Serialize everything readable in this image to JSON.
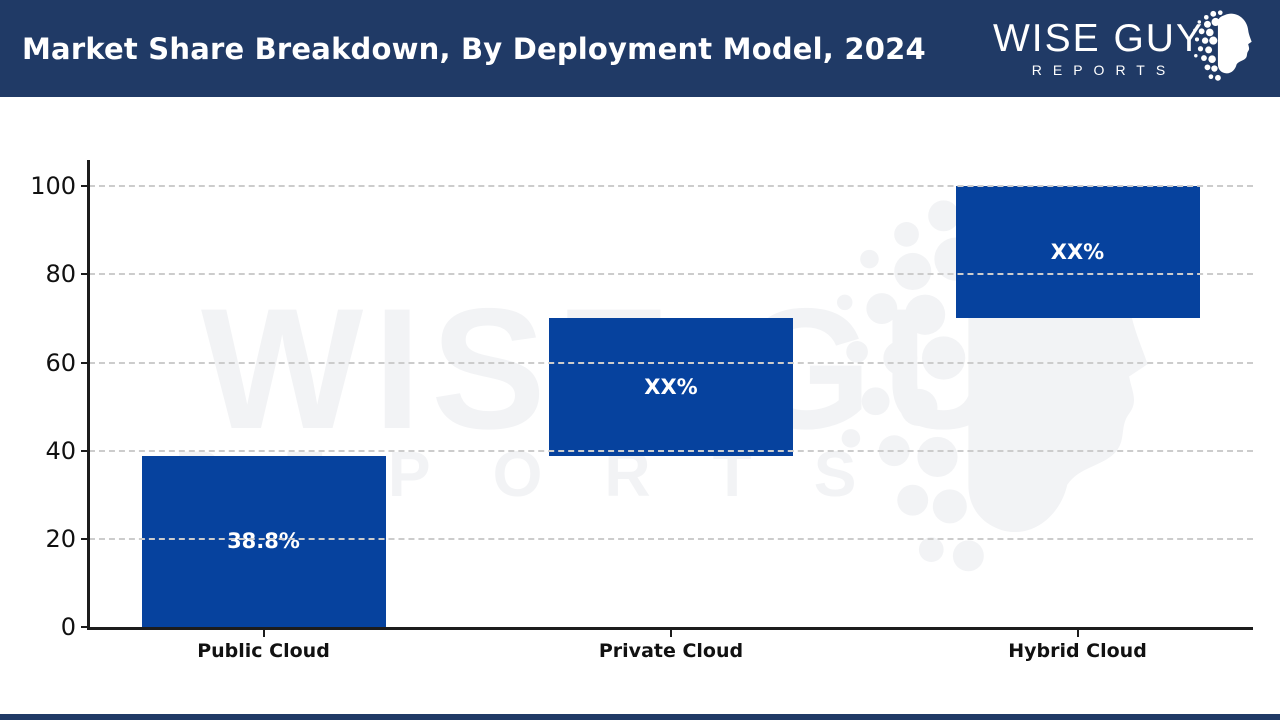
{
  "header": {
    "title": "Market Share Breakdown, By Deployment Model, 2024",
    "bg_color": "#203A66",
    "logo": {
      "line1": "WISE GUY",
      "line2": "REPORTS"
    }
  },
  "watermark": {
    "line1": "WISE GUY",
    "line2": "REPORTS"
  },
  "chart_data": {
    "type": "bar",
    "subtype": "floating-segment-waterfall",
    "title": "Market Share Breakdown, By Deployment Model, 2024",
    "categories": [
      "Public Cloud",
      "Private Cloud",
      "Hybrid Cloud"
    ],
    "bars": [
      {
        "category": "Public Cloud",
        "label": "38.8%",
        "start": 0,
        "end": 38.8,
        "height": 38.8
      },
      {
        "category": "Private Cloud",
        "label": "XX%",
        "start": 38.8,
        "end": 70,
        "height": 31.2
      },
      {
        "category": "Hybrid Cloud",
        "label": "XX%",
        "start": 70,
        "end": 100,
        "height": 30
      }
    ],
    "yticks": [
      0,
      20,
      40,
      60,
      80,
      100
    ],
    "ylim": [
      0,
      106
    ],
    "xlabel": "",
    "ylabel": "",
    "grid": "horizontal-dashed",
    "legend": "none",
    "bar_color": "#06429E",
    "bar_label_color": "#ffffff",
    "gridline_color": "#cccccc",
    "axis_color": "#1c1c1c"
  }
}
